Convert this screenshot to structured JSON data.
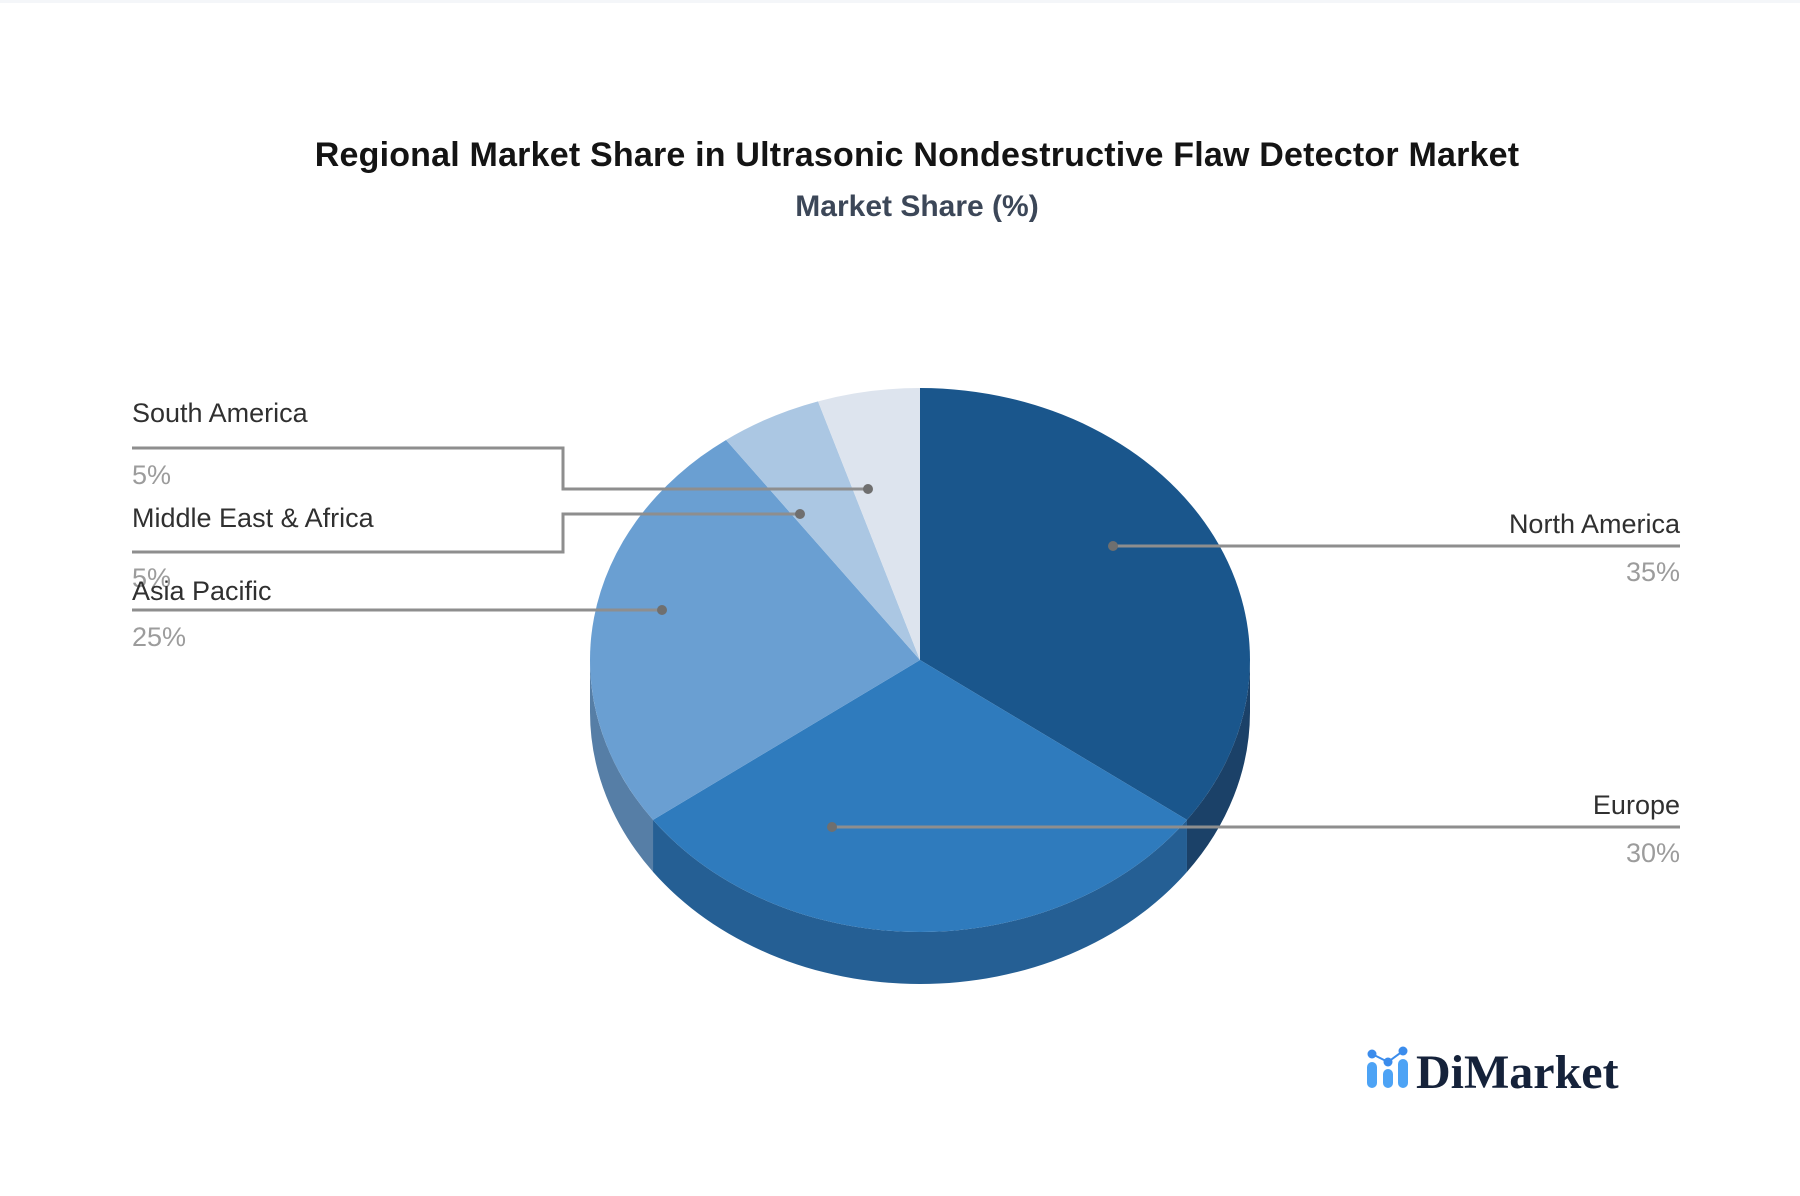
{
  "title": "Regional Market Share in Ultrasonic Nondestructive Flaw Detector Market",
  "subtitle": "Market Share (%)",
  "logo": {
    "name": "DiMarket",
    "icon": "bar-line-chart-icon",
    "icon_bar_color": "#4da3f5",
    "icon_dot_color": "#3b8cec",
    "text_color": "#15223a"
  },
  "callout_line_color": "#8e8e8e",
  "callout_dot_color": "#6f6f6f",
  "chart_data": {
    "type": "pie",
    "style": "3d-pie",
    "title": "Regional Market Share in Ultrasonic Nondestructive Flaw Detector Market",
    "subtitle": "Market Share (%)",
    "unit": "%",
    "start_angle_deg": 0,
    "direction": "clockwise",
    "legend": "callout-labels",
    "slices": [
      {
        "label": "North America",
        "value": 35,
        "value_label": "35%",
        "color": "#1a568c",
        "rim_color": "#1b4168"
      },
      {
        "label": "Europe",
        "value": 30,
        "value_label": "30%",
        "color": "#2f7bbd",
        "rim_color": "#255f94"
      },
      {
        "label": "Asia Pacific",
        "value": 25,
        "value_label": "25%",
        "color": "#6a9fd2",
        "rim_color": "#567ea6"
      },
      {
        "label": "Middle East & Africa",
        "value": 5,
        "value_label": "5%",
        "color": "#abc7e3",
        "rim_color": "#8aa7c4"
      },
      {
        "label": "South America",
        "value": 5,
        "value_label": "5%",
        "color": "#dde4ee",
        "rim_color": "#bcc5d2"
      }
    ]
  }
}
